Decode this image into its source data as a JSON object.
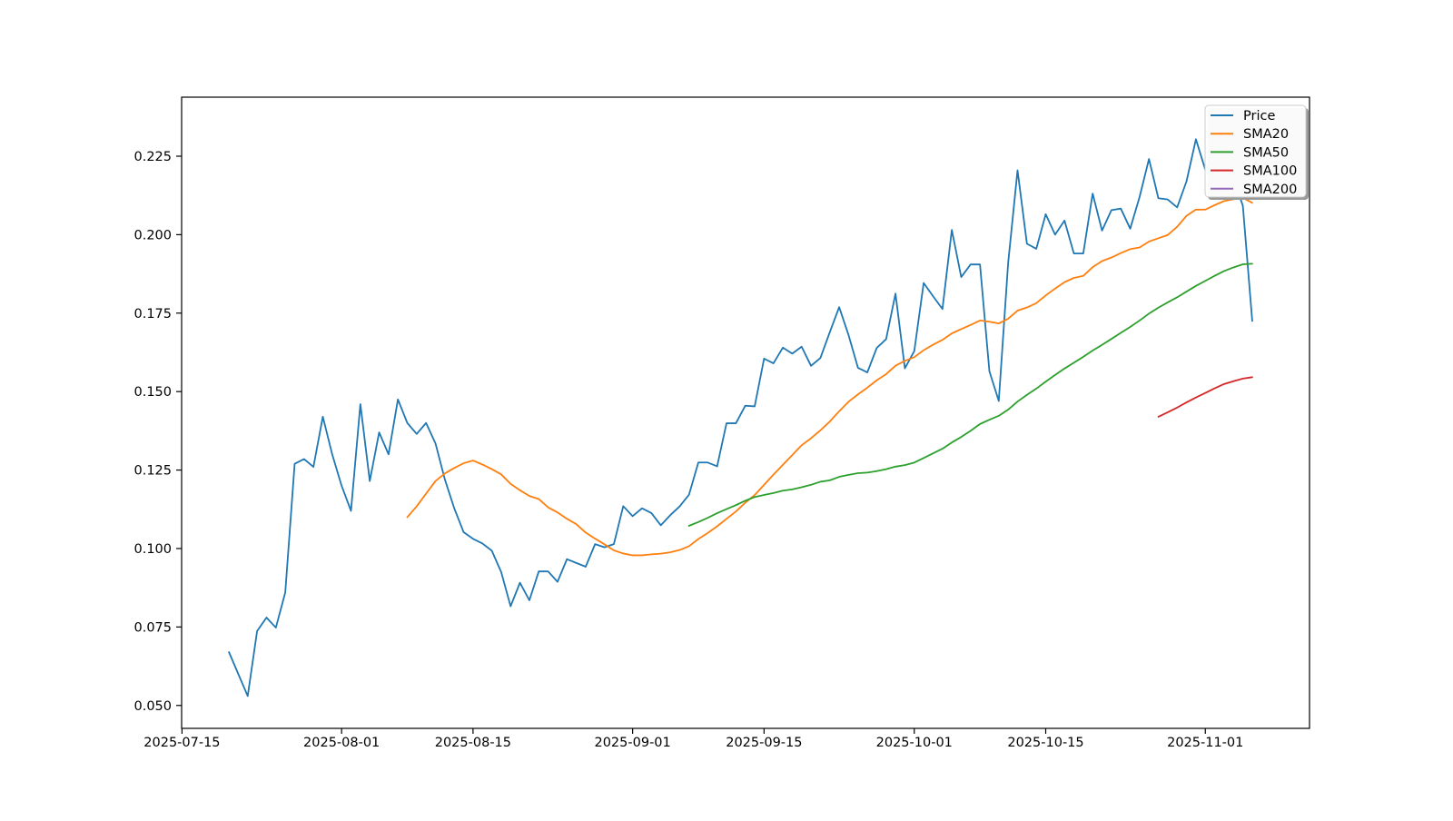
{
  "figure": {
    "background": "#ffffff",
    "border_color": "#000000"
  },
  "chart_data": {
    "type": "line",
    "title": "",
    "xlabel": "",
    "ylabel": "",
    "grid": false,
    "x_axis": {
      "tick_labels": [
        "2025-07-15",
        "2025-08-01",
        "2025-08-15",
        "2025-09-01",
        "2025-09-15",
        "2025-10-01",
        "2025-10-15",
        "2025-11-01"
      ],
      "tick_day_offsets": [
        -5,
        12,
        26,
        43,
        57,
        73,
        87,
        104
      ],
      "range_day_offsets": [
        -5.04,
        115.1
      ]
    },
    "y_axis": {
      "tick_labels": [
        "0.050",
        "0.075",
        "0.100",
        "0.125",
        "0.150",
        "0.175",
        "0.200",
        "0.225"
      ],
      "tick_values": [
        0.05,
        0.075,
        0.1,
        0.125,
        0.15,
        0.175,
        0.2,
        0.225
      ],
      "range": [
        0.0427,
        0.2438
      ]
    },
    "price": {
      "start_date": "2025-07-20",
      "end_date": "2025-11-06",
      "frequency": "daily",
      "values": [
        0.067,
        0.06,
        0.053,
        0.0737,
        0.078,
        0.0748,
        0.086,
        0.127,
        0.1285,
        0.126,
        0.142,
        0.13,
        0.12,
        0.112,
        0.146,
        0.1215,
        0.137,
        0.13,
        0.1475,
        0.14,
        0.1365,
        0.14,
        0.1335,
        0.122,
        0.1128,
        0.1052,
        0.1031,
        0.1016,
        0.0993,
        0.0925,
        0.0816,
        0.0891,
        0.0835,
        0.0927,
        0.0927,
        0.0894,
        0.0966,
        0.0954,
        0.0942,
        0.1014,
        0.1004,
        0.1014,
        0.1135,
        0.1103,
        0.1128,
        0.1113,
        0.1074,
        0.1106,
        0.1134,
        0.1171,
        0.1274,
        0.1274,
        0.1262,
        0.1399,
        0.1399,
        0.1455,
        0.1453,
        0.1605,
        0.159,
        0.164,
        0.1621,
        0.1643,
        0.1582,
        0.1607,
        0.1689,
        0.1769,
        0.168,
        0.1576,
        0.1561,
        0.1639,
        0.1667,
        0.1812,
        0.1574,
        0.1629,
        0.1846,
        0.1804,
        0.1763,
        0.2015,
        0.1865,
        0.1905,
        0.1905,
        0.1565,
        0.147,
        0.191,
        0.2205,
        0.1971,
        0.1955,
        0.2065,
        0.2,
        0.2045,
        0.194,
        0.194,
        0.2131,
        0.2013,
        0.2078,
        0.2083,
        0.2019,
        0.212,
        0.2241,
        0.2116,
        0.2112,
        0.2087,
        0.217,
        0.2304,
        0.2207,
        0.2255,
        0.2215,
        0.218,
        0.2092,
        0.1725
      ]
    },
    "series": [
      {
        "name": "Price",
        "color": "#1f77b4",
        "kind": "raw"
      },
      {
        "name": "SMA20",
        "color": "#ff7f0e",
        "kind": "sma",
        "window": 20
      },
      {
        "name": "SMA50",
        "color": "#2ca02c",
        "kind": "sma",
        "window": 50
      },
      {
        "name": "SMA100",
        "color": "#d62728",
        "kind": "sma",
        "window": 100
      },
      {
        "name": "SMA200",
        "color": "#9467bd",
        "kind": "sma",
        "window": 200
      }
    ],
    "legend": {
      "position": "upper right",
      "labels": [
        "Price",
        "SMA20",
        "SMA50",
        "SMA100",
        "SMA200"
      ],
      "frame_fill": "#ffffff",
      "frame_edge": "#cccccc",
      "shadow_color": "#999999"
    }
  }
}
